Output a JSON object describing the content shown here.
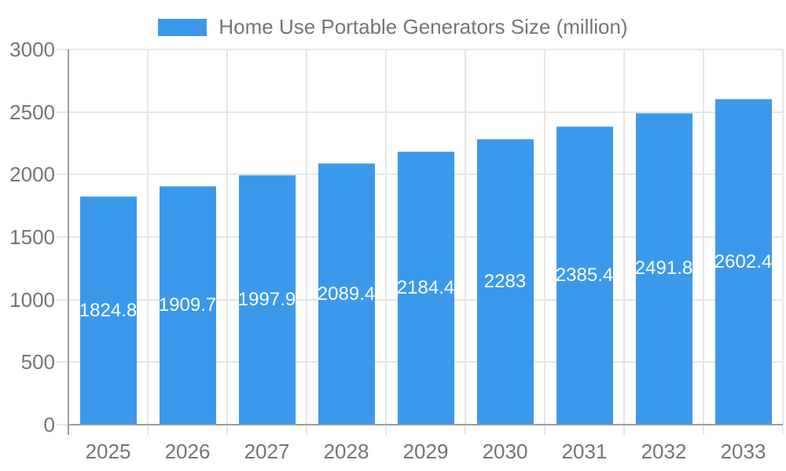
{
  "legend": {
    "label": "Home Use Portable Generators Size (million)"
  },
  "colors": {
    "bar": "#3B99EC",
    "bar_label": "#FFFFFF",
    "grid": "#E6E6E6",
    "axis": "#9E9E9E",
    "text": "#757575",
    "background": "#FFFFFF"
  },
  "chart_data": {
    "type": "bar",
    "title": "Home Use Portable Generators Size (million)",
    "series_name": "Home Use Portable Generators Size (million)",
    "categories": [
      "2025",
      "2026",
      "2027",
      "2028",
      "2029",
      "2030",
      "2031",
      "2032",
      "2033"
    ],
    "values": [
      1824.8,
      1909.7,
      1997.9,
      2089.4,
      2184.4,
      2283,
      2385.4,
      2491.8,
      2602.4
    ],
    "xlabel": "",
    "ylabel": "",
    "ylim": [
      0,
      3000
    ],
    "yticks": [
      0,
      500,
      1000,
      1500,
      2000,
      2500,
      3000
    ],
    "grid": true,
    "legend_position": "top",
    "value_label_position": "inside-center"
  }
}
